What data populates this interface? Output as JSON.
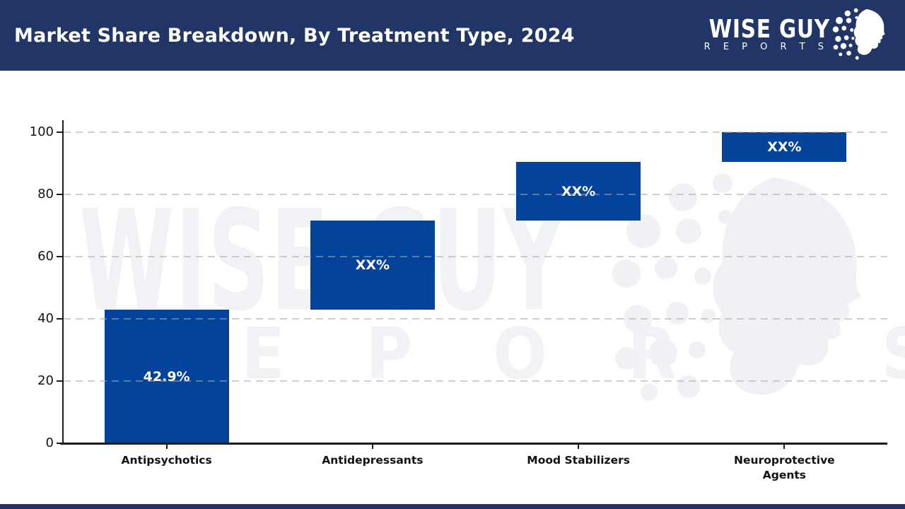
{
  "header": {
    "title": "Market Share Breakdown, By Treatment Type, 2024",
    "logo": {
      "line1": "WISE GUY",
      "line2": "R E P O R T S"
    }
  },
  "watermark": {
    "line1": "WISE GUY",
    "line2": "R E P O R T S"
  },
  "chart_data": {
    "type": "bar",
    "subtype": "waterfall",
    "title": "Market Share Breakdown, By Treatment Type, 2024",
    "xlabel": "",
    "ylabel": "",
    "categories": [
      "Antipsychotics",
      "Antidepressants",
      "Mood Stabilizers",
      "Neuroprotective Agents"
    ],
    "segments": [
      {
        "category": "Antipsychotics",
        "start": 0,
        "end": 42.9,
        "label": "42.9%"
      },
      {
        "category": "Antidepressants",
        "start": 42.9,
        "end": 71.5,
        "label": "XX%"
      },
      {
        "category": "Mood Stabilizers",
        "start": 71.5,
        "end": 90.5,
        "label": "XX%"
      },
      {
        "category": "Neuroprotective Agents",
        "start": 90.5,
        "end": 100,
        "label": "XX%"
      }
    ],
    "yticks": [
      0,
      20,
      40,
      60,
      80,
      100
    ],
    "ylim": [
      0,
      100
    ],
    "grid": "dashed-horizontal",
    "legend": null,
    "bar_color": "#04439c"
  },
  "colors": {
    "header_bg": "#213666",
    "footer_bg": "#213666",
    "bar": "#04439c",
    "title_text": "#ffffff",
    "watermark": "#f1f2f5"
  }
}
